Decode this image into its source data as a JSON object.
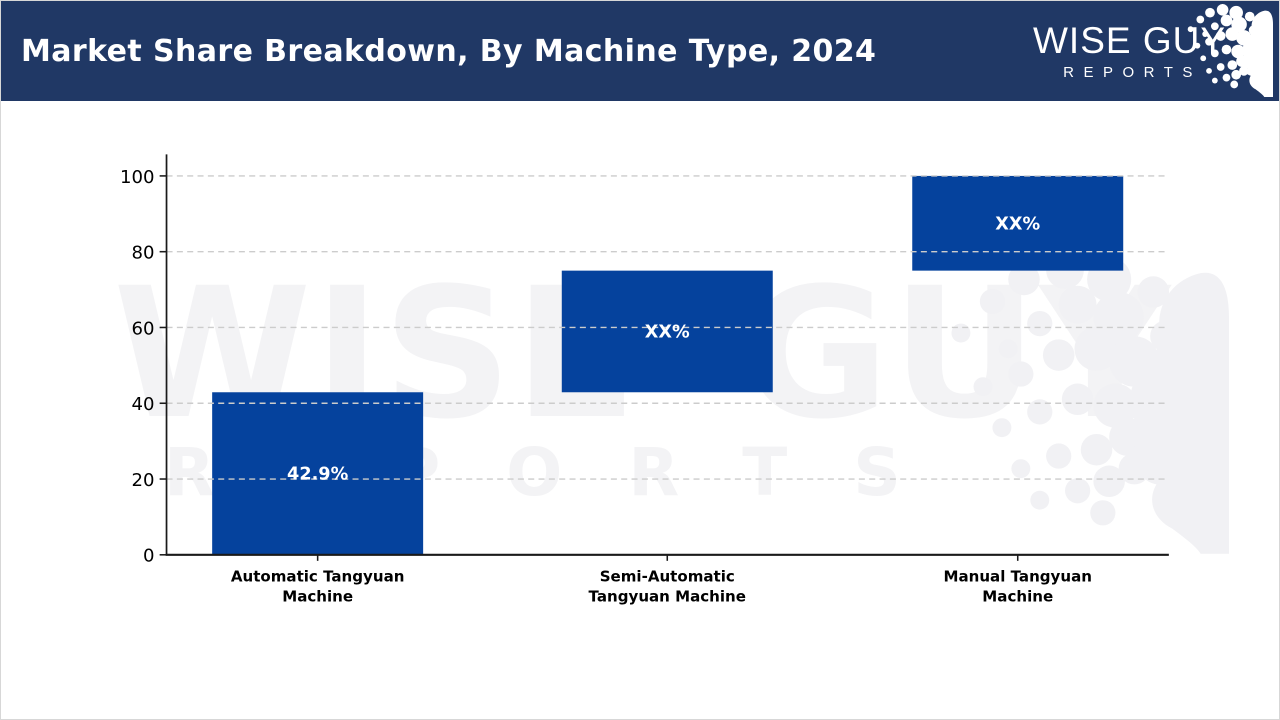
{
  "header": {
    "title": "Market Share Breakdown, By Machine Type, 2024",
    "logo": {
      "wordmark": "WISE GUY",
      "subtext": "REPORTS"
    }
  },
  "watermark": {
    "line1": "WISE GUY",
    "line2": "REPORTS"
  },
  "colors": {
    "header_bg": "#203865",
    "title_text": "#ffffff",
    "bar": "#05429d",
    "bar_value_text": "#ffffff",
    "grid": "#cccccc",
    "axis": "#1a1a1a",
    "tick_text": "#000000",
    "watermark": "#f3f3f5"
  },
  "chart_data": {
    "type": "bar",
    "subtype": "waterfall-stacked",
    "title": "Market Share Breakdown, By Machine Type, 2024",
    "categories": [
      "Automatic Tangyuan Machine",
      "Semi-Automatic Tangyuan Machine",
      "Manual Tangyuan Machine"
    ],
    "category_label_lines": [
      [
        "Automatic Tangyuan",
        "Machine"
      ],
      [
        "Semi-Automatic",
        "Tangyuan Machine"
      ],
      [
        "Manual Tangyuan",
        "Machine"
      ]
    ],
    "segments": [
      {
        "category": "Automatic Tangyuan Machine",
        "start": 0,
        "end": 42.9,
        "value_label": "42.9%"
      },
      {
        "category": "Semi-Automatic Tangyuan Machine",
        "start": 42.9,
        "end": 75,
        "value_label": "XX%"
      },
      {
        "category": "Manual Tangyuan Machine",
        "start": 75,
        "end": 100,
        "value_label": "XX%"
      }
    ],
    "ylim": [
      0,
      100
    ],
    "yticks": [
      0,
      20,
      40,
      60,
      80,
      100
    ],
    "grid": {
      "horizontal": true,
      "style": "dashed"
    },
    "legend": "none",
    "xlabel": "",
    "ylabel": ""
  }
}
